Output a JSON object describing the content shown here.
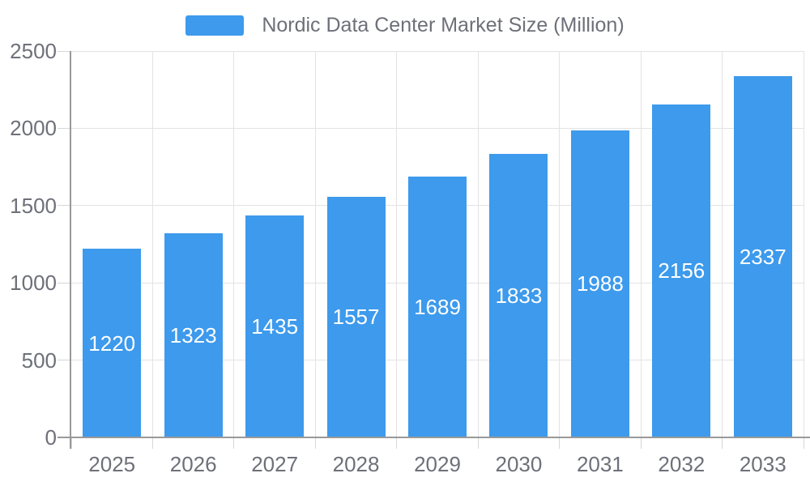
{
  "legend": {
    "label": "Nordic Data Center Market Size (Million)"
  },
  "colors": {
    "bar": "#3D9AEC",
    "axis_line": "#999999",
    "tick_line": "#D6D6D6",
    "gridline": "#E3E3E3",
    "axis_text": "#6E7079",
    "legend_text": "#6E7079",
    "value_text": "#FFFFFF",
    "background": "#FFFFFF"
  },
  "chart_data": {
    "type": "bar",
    "title": "",
    "legend_entries": [
      "Nordic Data Center Market Size (Million)"
    ],
    "legend_position": "top-center",
    "categories": [
      "2025",
      "2026",
      "2027",
      "2028",
      "2029",
      "2030",
      "2031",
      "2032",
      "2033"
    ],
    "series": [
      {
        "name": "Nordic Data Center Market Size (Million)",
        "values": [
          1220,
          1323,
          1435,
          1557,
          1689,
          1833,
          1988,
          2156,
          2337
        ]
      }
    ],
    "xlabel": "",
    "ylabel": "",
    "ylim": [
      0,
      2500
    ],
    "yticks": [
      0,
      500,
      1000,
      1500,
      2000,
      2500
    ],
    "grid": true,
    "value_labels": "inside-middle"
  }
}
